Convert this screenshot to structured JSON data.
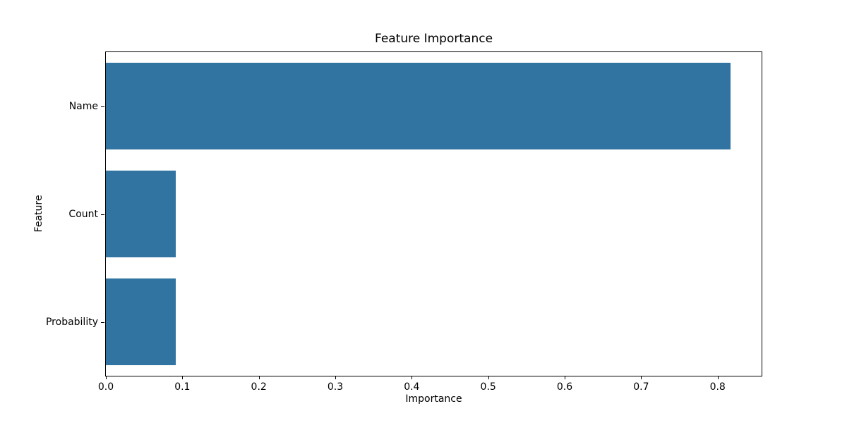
{
  "chart_data": {
    "type": "bar",
    "orientation": "horizontal",
    "title": "Feature Importance",
    "xlabel": "Importance",
    "ylabel": "Feature",
    "categories": [
      "Name",
      "Count",
      "Probability"
    ],
    "values": [
      0.817,
      0.091,
      0.091
    ],
    "xlim": [
      0,
      0.8575
    ],
    "xticks": [
      0.0,
      0.1,
      0.2,
      0.3,
      0.4,
      0.5,
      0.6,
      0.7,
      0.8
    ],
    "xtick_labels": [
      "0.0",
      "0.1",
      "0.2",
      "0.3",
      "0.4",
      "0.5",
      "0.6",
      "0.7",
      "0.8"
    ],
    "bar_color": "#3274a1",
    "frame_color": "#000000",
    "background": "#ffffff",
    "grid": false,
    "legend": null,
    "bar_fraction": 0.8
  }
}
